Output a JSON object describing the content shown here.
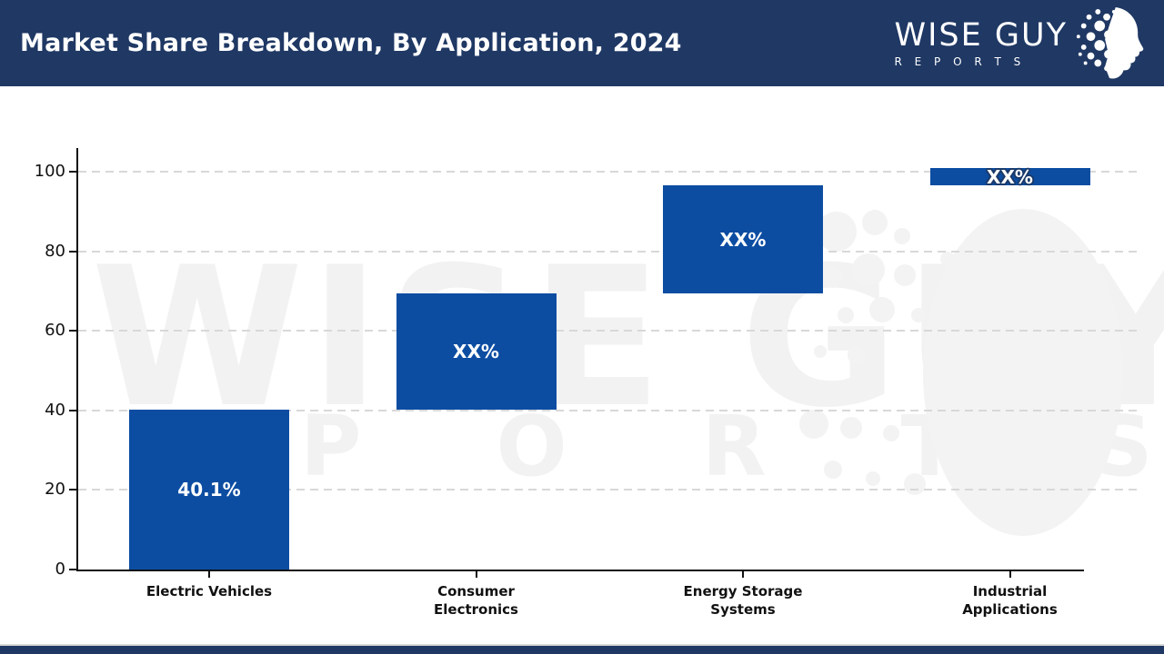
{
  "header": {
    "title": "Market Share Breakdown, By Application, 2024",
    "logo": {
      "wordmark": "WISE GUY",
      "subtext": "R E P O R T S"
    }
  },
  "watermark": {
    "line1": "WISE GUY",
    "line2": "P O R T S"
  },
  "chart_data": {
    "type": "bar",
    "subtype": "waterfall",
    "title": "Market Share Breakdown, By Application, 2024",
    "xlabel": "",
    "ylabel": "",
    "ylim": [
      0,
      106
    ],
    "yticks": [
      0,
      20,
      40,
      60,
      80,
      100
    ],
    "grid": "horizontal-dashed",
    "legend": "none",
    "categories": [
      "Electric Vehicles",
      "Consumer\nElectronics",
      "Energy Storage\nSystems",
      "Industrial\nApplications"
    ],
    "bars": [
      {
        "category": "Electric Vehicles",
        "start": 0,
        "end": 40.1,
        "label": "40.1%",
        "label_style": "plain"
      },
      {
        "category": "Consumer Electronics",
        "start": 40.1,
        "end": 69.4,
        "label": "XX%",
        "label_style": "plain"
      },
      {
        "category": "Energy Storage Systems",
        "start": 69.4,
        "end": 96.5,
        "label": "XX%",
        "label_style": "plain"
      },
      {
        "category": "Industrial Applications",
        "start": 96.5,
        "end": 100.9,
        "label": "XX%",
        "label_style": "outlined"
      }
    ],
    "bar_color": "#0c4da2",
    "label_color": "#ffffff"
  },
  "colors": {
    "header_bg": "#1f3864",
    "footer_bg": "#1f3864",
    "bar": "#0c4da2",
    "grid": "#d8d8d8",
    "axis": "#111111",
    "watermark": "#f2f2f2"
  }
}
